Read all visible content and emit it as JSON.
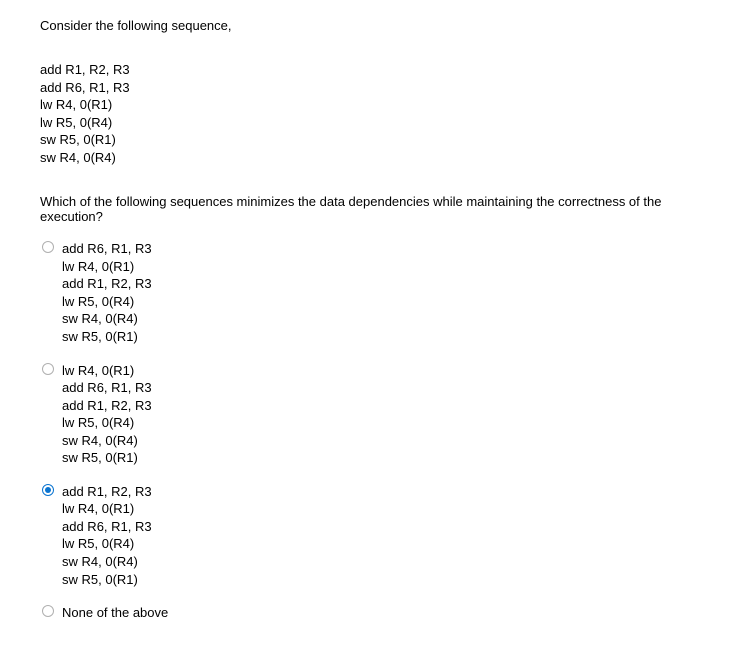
{
  "question": {
    "intro": "Consider the following sequence,",
    "code": [
      "add R1, R2, R3",
      "add R6, R1, R3",
      "lw R4, 0(R1)",
      "lw R5, 0(R4)",
      "sw R5, 0(R1)",
      "sw R4, 0(R4)"
    ],
    "prompt": "Which of the following sequences minimizes the data dependencies while maintaining the correctness of the execution?"
  },
  "options": [
    {
      "selected": false,
      "lines": [
        "add R6, R1, R3",
        "lw R4, 0(R1)",
        "add R1, R2, R3",
        "lw R5, 0(R4)",
        "sw R4, 0(R4)",
        "sw R5, 0(R1)"
      ]
    },
    {
      "selected": false,
      "lines": [
        "lw R4, 0(R1)",
        "add R6, R1, R3",
        "add R1, R2, R3",
        "lw R5, 0(R4)",
        "sw R4, 0(R4)",
        "sw R5, 0(R1)"
      ]
    },
    {
      "selected": true,
      "lines": [
        "add R1, R2, R3",
        "lw R4, 0(R1)",
        "add R6, R1, R3",
        "lw R5, 0(R4)",
        "sw R4, 0(R4)",
        "sw R5, 0(R1)"
      ]
    },
    {
      "selected": false,
      "lines": [
        "None of the above"
      ]
    }
  ]
}
